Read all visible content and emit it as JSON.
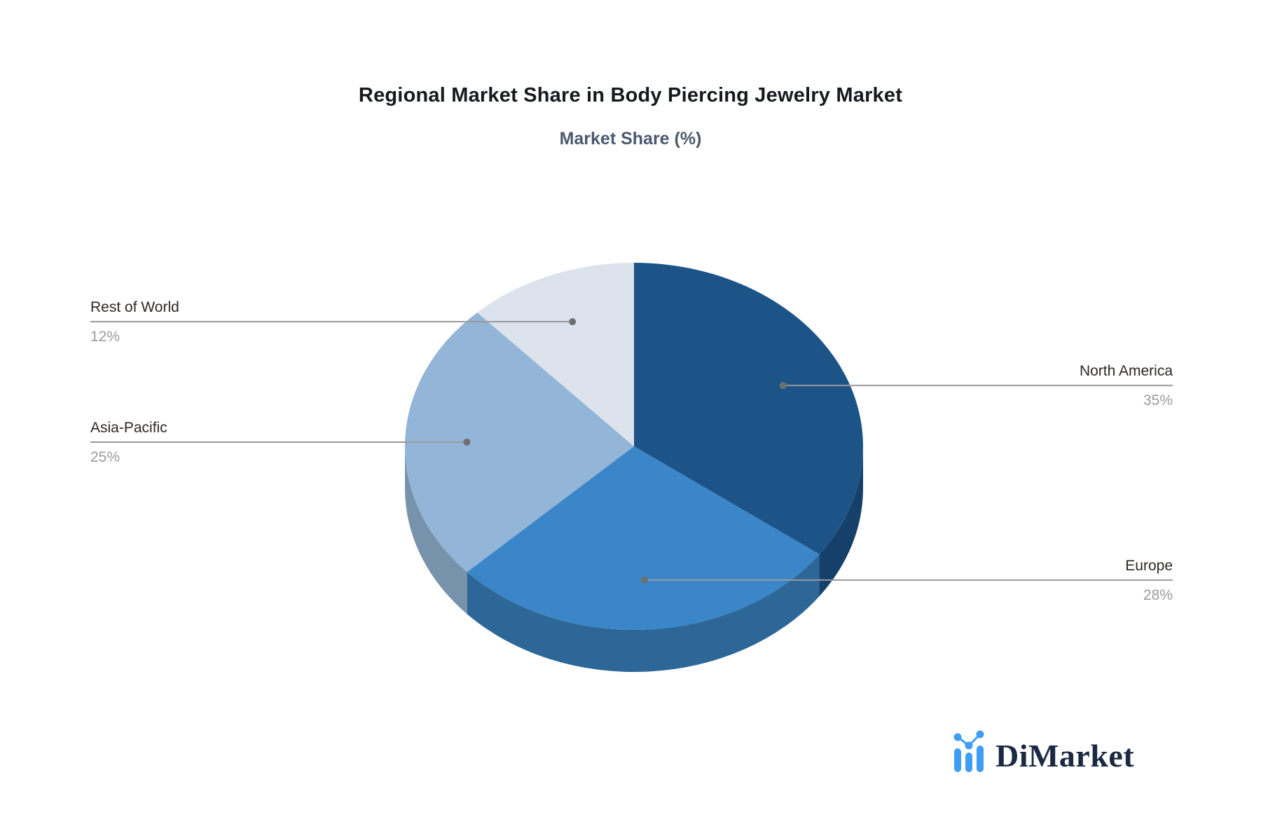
{
  "chart_data": {
    "type": "pie",
    "title": "Regional Market Share in Body Piercing Jewelry Market",
    "subtitle": "Market Share (%)",
    "unit": "%",
    "effect": "3d",
    "direction": "clockwise",
    "start_angle_deg": 0,
    "legend": "none",
    "slices": [
      {
        "name": "North America",
        "value": 35,
        "label": "35%",
        "color": "#1d5488",
        "side_color": "#15406a",
        "label_side": "right"
      },
      {
        "name": "Europe",
        "value": 28,
        "label": "28%",
        "color": "#3a86c8",
        "side_color": "#2c6798",
        "label_side": "right"
      },
      {
        "name": "Asia-Pacific",
        "value": 25,
        "label": "25%",
        "color": "#93b5d8",
        "side_color": "#7792ab",
        "label_side": "left"
      },
      {
        "name": "Rest of World",
        "value": 12,
        "label": "12%",
        "color": "#dde3ed",
        "side_color": "#b9c5d6",
        "label_side": "left"
      }
    ],
    "connector_color": "#999999",
    "connector_dot_color": "#6f6f6f",
    "label_name_color": "#2d2823",
    "label_value_color": "#9b9b9b"
  },
  "branding": {
    "logo_text": "DiMarket",
    "logo_icon": "bar-line-chart-icon",
    "logo_text_color": "#1b2942",
    "logo_accent_color": "#3f9df6"
  }
}
